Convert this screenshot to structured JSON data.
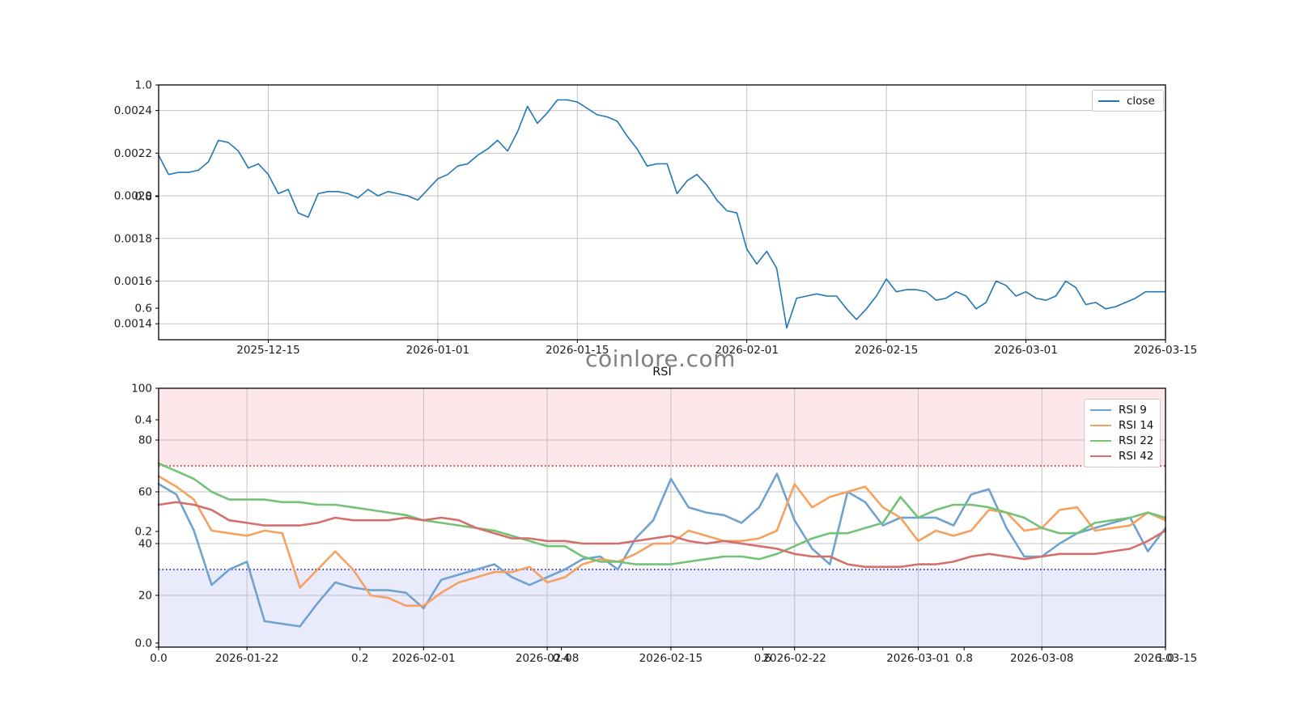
{
  "watermark": {
    "text": "coinlore.com",
    "color": "#808080"
  },
  "rsi_title": "RSI",
  "legends": {
    "close": {
      "items": [
        {
          "label": "close",
          "color": "#1f77b4"
        }
      ]
    },
    "rsi": {
      "items": [
        {
          "label": "RSI 9",
          "color": "#6fa3cf"
        },
        {
          "label": "RSI 14",
          "color": "#f6a15f"
        },
        {
          "label": "RSI 22",
          "color": "#74c276"
        },
        {
          "label": "RSI 42",
          "color": "#d4706c"
        }
      ]
    }
  },
  "colors": {
    "close_line": "#1f77b4",
    "grid": "#c2c2c2",
    "spine": "#000000",
    "tick_text": "#1c1c1c",
    "overbought_band": "rgba(250,40,60,0.11)",
    "oversold_band": "rgba(60,60,235,0.11)",
    "overbought_line": "#d4222c",
    "oversold_line": "#2222cc"
  },
  "chart_data": [
    {
      "type": "line",
      "title": "",
      "name": "price-close",
      "legend_position": "upper right",
      "x_start_date": "2025-12-04",
      "x_tick_labels": [
        "2025-12-15",
        "2026-01-01",
        "2026-01-15",
        "2026-02-01",
        "2026-02-15",
        "2026-03-01",
        "2026-03-15"
      ],
      "x_tick_days": [
        11,
        28,
        42,
        59,
        73,
        87,
        101
      ],
      "y_ticks": [
        0.0014,
        0.0016,
        0.0018,
        0.002,
        0.0022,
        0.0024
      ],
      "y_tick_labels": [
        "0.0014",
        "0.0016",
        "0.0018",
        "0.0020",
        "0.0022",
        "0.0024"
      ],
      "ylim": [
        0.001325,
        0.00252
      ],
      "grid": true,
      "series": [
        {
          "name": "close",
          "color": "#1f77b4",
          "width": 1.6,
          "values": [
            0.00219,
            0.0021,
            0.00211,
            0.00211,
            0.00212,
            0.00216,
            0.00226,
            0.00225,
            0.00221,
            0.00213,
            0.00215,
            0.0021,
            0.00201,
            0.00203,
            0.00192,
            0.0019,
            0.00201,
            0.00202,
            0.00202,
            0.00201,
            0.00199,
            0.00203,
            0.002,
            0.00202,
            0.00201,
            0.002,
            0.00198,
            0.00203,
            0.00208,
            0.0021,
            0.00214,
            0.00215,
            0.00219,
            0.00222,
            0.00226,
            0.00221,
            0.0023,
            0.00242,
            0.00234,
            0.00239,
            0.00245,
            0.00245,
            0.00244,
            0.00241,
            0.00238,
            0.00237,
            0.00235,
            0.00228,
            0.00222,
            0.00214,
            0.00215,
            0.00215,
            0.00201,
            0.00207,
            0.0021,
            0.00205,
            0.00198,
            0.00193,
            0.00192,
            0.00175,
            0.00168,
            0.00174,
            0.00166,
            0.00138,
            0.00152,
            0.00153,
            0.00154,
            0.00153,
            0.00153,
            0.00147,
            0.00142,
            0.00147,
            0.00153,
            0.00161,
            0.00155,
            0.00156,
            0.00156,
            0.00155,
            0.00151,
            0.00152,
            0.00155,
            0.00153,
            0.00147,
            0.0015,
            0.0016,
            0.00158,
            0.00153,
            0.00155,
            0.00152,
            0.00151,
            0.00153,
            0.0016,
            0.00157,
            0.00149,
            0.0015,
            0.00147,
            0.00148,
            0.0015,
            0.00152,
            0.00155,
            0.00155,
            0.00155
          ]
        }
      ]
    },
    {
      "type": "line",
      "title": "RSI",
      "name": "rsi",
      "legend_position": "upper right",
      "x_start_date": "2026-01-17",
      "x_tick_labels": [
        "2026-01-22",
        "2026-02-01",
        "2026-02-08",
        "2026-02-15",
        "2026-02-22",
        "2026-03-01",
        "2026-03-08",
        "2026-03-15"
      ],
      "x_tick_days": [
        5,
        15,
        22,
        29,
        36,
        43,
        50,
        57
      ],
      "y_ticks": [
        0,
        20,
        40,
        60,
        80,
        100
      ],
      "y_tick_labels": [
        "0",
        "20",
        "40",
        "60",
        "80",
        "100"
      ],
      "ylim": [
        0,
        100
      ],
      "grid": true,
      "overbought_level": 70,
      "oversold_level": 30,
      "series": [
        {
          "name": "RSI 9",
          "color": "#6fa3cf",
          "width": 2.6,
          "values": [
            63,
            59,
            45,
            24,
            30,
            33,
            10,
            9,
            8,
            17,
            25,
            23,
            22,
            22,
            21,
            15,
            26,
            28,
            30,
            32,
            27,
            24,
            27,
            30,
            34,
            35,
            30,
            42,
            49,
            65,
            54,
            52,
            51,
            48,
            54,
            67,
            49,
            38,
            32,
            60,
            56,
            47,
            50,
            50,
            50,
            47,
            59,
            61,
            46,
            35,
            35,
            40,
            44,
            46,
            48,
            50,
            37,
            46
          ]
        },
        {
          "name": "RSI 14",
          "color": "#f6a15f",
          "width": 2.6,
          "values": [
            66,
            62,
            57,
            45,
            44,
            43,
            45,
            44,
            23,
            30,
            37,
            30,
            20,
            19,
            16,
            16,
            21,
            25,
            27,
            29,
            29,
            31,
            25,
            27,
            32,
            34,
            33,
            36,
            40,
            40,
            45,
            43,
            41,
            41,
            42,
            45,
            63,
            54,
            58,
            60,
            62,
            54,
            50,
            41,
            45,
            43,
            45,
            53,
            52,
            45,
            46,
            53,
            54,
            45,
            46,
            47,
            52,
            49
          ]
        },
        {
          "name": "RSI 22",
          "color": "#74c276",
          "width": 2.6,
          "values": [
            71,
            68,
            65,
            60,
            57,
            57,
            57,
            56,
            56,
            55,
            55,
            54,
            53,
            52,
            51,
            49,
            48,
            47,
            46,
            45,
            43,
            41,
            39,
            39,
            35,
            33,
            33,
            32,
            32,
            32,
            33,
            34,
            35,
            35,
            34,
            36,
            39,
            42,
            44,
            44,
            46,
            48,
            58,
            50,
            53,
            55,
            55,
            54,
            52,
            50,
            46,
            44,
            44,
            48,
            49,
            50,
            52,
            50
          ]
        },
        {
          "name": "RSI 42",
          "color": "#d4706c",
          "width": 2.6,
          "values": [
            55,
            56,
            55,
            53,
            49,
            48,
            47,
            47,
            47,
            48,
            50,
            49,
            49,
            49,
            50,
            49,
            50,
            49,
            46,
            44,
            42,
            42,
            41,
            41,
            40,
            40,
            40,
            41,
            42,
            43,
            41,
            40,
            41,
            40,
            39,
            38,
            36,
            35,
            35,
            32,
            31,
            31,
            31,
            32,
            32,
            33,
            35,
            36,
            35,
            34,
            35,
            36,
            36,
            36,
            37,
            38,
            41,
            45
          ]
        }
      ]
    }
  ],
  "overlay_axis": {
    "y_tick_labels": [
      "1.0",
      "0.8",
      "0.6",
      "0.4",
      "0.2",
      "0.0"
    ],
    "x_tick_labels": [
      "0.0",
      "0.2",
      "0.4",
      "0.6",
      "0.8",
      "1.0"
    ]
  }
}
